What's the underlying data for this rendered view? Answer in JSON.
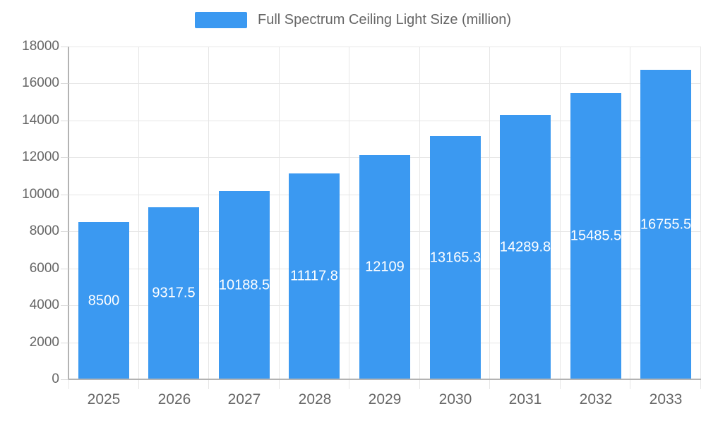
{
  "chart_data": {
    "type": "bar",
    "title": "Full Spectrum Ceiling Light Size (million)",
    "legend_entries": [
      "Full Spectrum Ceiling Light Size (million)"
    ],
    "legend_position": "top-center",
    "categories": [
      "2025",
      "2026",
      "2027",
      "2028",
      "2029",
      "2030",
      "2031",
      "2032",
      "2033"
    ],
    "series": [
      {
        "name": "Full Spectrum Ceiling Light Size (million)",
        "values": [
          8500,
          9317.5,
          10188.5,
          11117.8,
          12109,
          13165.3,
          14289.8,
          15485.5,
          16755.5
        ],
        "value_labels": [
          "8500",
          "9317.5",
          "10188.5",
          "11117.8",
          "12109",
          "13165.3",
          "14289.8",
          "15485.5",
          "16755.5"
        ]
      }
    ],
    "xlabel": "",
    "ylabel": "",
    "ylim": [
      0,
      18000
    ],
    "ytick_step": 2000,
    "ytick_labels": [
      "0",
      "2000",
      "4000",
      "6000",
      "8000",
      "10000",
      "12000",
      "14000",
      "16000",
      "18000"
    ],
    "grid": true,
    "colors": {
      "bar": "#3b99f1",
      "gridline": "#e6e6e6",
      "axis_line": "#b3b3b3",
      "tick": "#d9d9d9",
      "axis_text": "#666666",
      "value_label_text": "#ffffff",
      "background": "#ffffff"
    }
  }
}
